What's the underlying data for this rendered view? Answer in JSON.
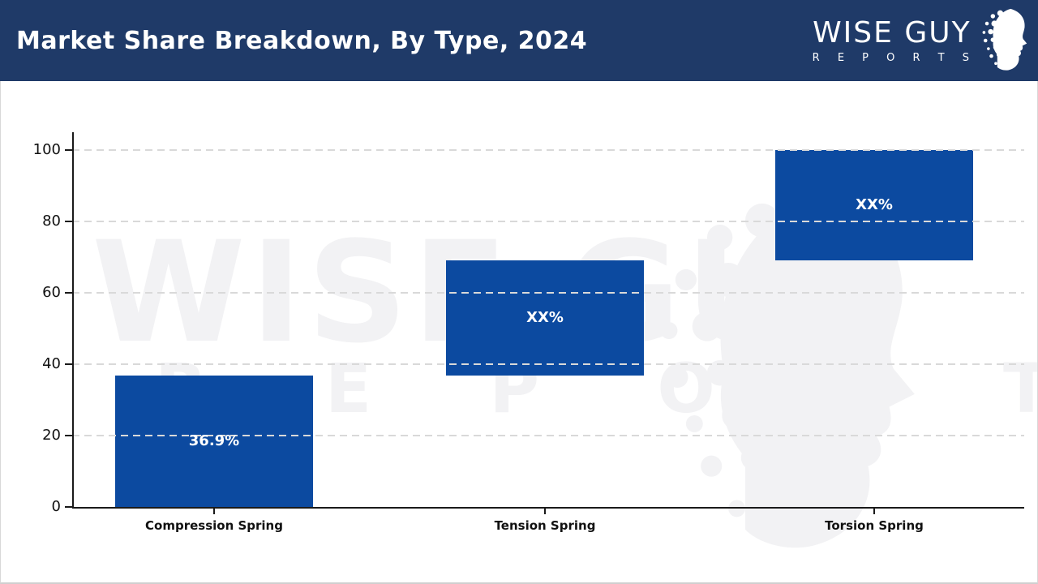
{
  "header": {
    "title": "Market Share Breakdown, By Type, 2024",
    "logo_line1": "WISE GUY",
    "logo_line2": "R E P O R T S"
  },
  "watermark": {
    "line1": "WISE GUY",
    "line2": "R E P O R T S"
  },
  "chart_data": {
    "type": "bar",
    "subtype": "floating_stacked_segments",
    "title": "Market Share Breakdown, By Type, 2024",
    "categories": [
      "Compression Spring",
      "Tension Spring",
      "Torsion Spring"
    ],
    "segments": [
      {
        "category": "Compression Spring",
        "start": 0,
        "end": 36.9,
        "label": "36.9%"
      },
      {
        "category": "Tension Spring",
        "start": 36.9,
        "end": 69.2,
        "label": "XX%"
      },
      {
        "category": "Torsion Spring",
        "start": 69.2,
        "end": 100,
        "label": "XX%"
      }
    ],
    "xlabel": "",
    "ylabel": "",
    "yticks": [
      0,
      20,
      40,
      60,
      80,
      100
    ],
    "ylim": [
      0,
      105
    ],
    "grid": {
      "horizontal": true,
      "style": "dashed"
    },
    "legend": "none",
    "colors": {
      "bar": "#0c4aa0",
      "bar_label": "#ffffff",
      "grid": "#d9d9d9",
      "axis": "#1a1a1a",
      "header_bg": "#1f3a68",
      "watermark": "#f2f2f4",
      "title_text": "#ffffff"
    }
  }
}
